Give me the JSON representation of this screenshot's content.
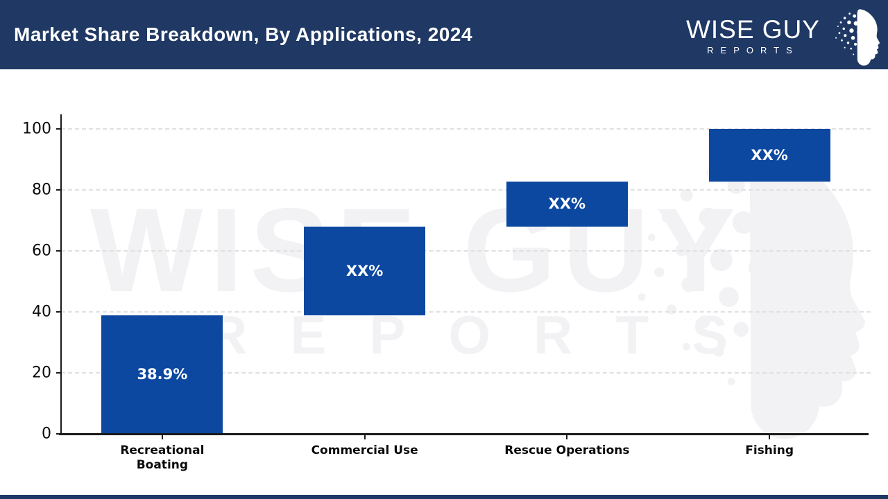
{
  "header": {
    "title": "Market Share Breakdown, By Applications, 2024",
    "logo": {
      "line1": "WISE GUY",
      "line2": "REPORTS"
    }
  },
  "watermark": {
    "line1": "WISE GUY",
    "line2": "REPORTS"
  },
  "chart_data": {
    "type": "bar",
    "variant": "waterfall",
    "title": "Market Share Breakdown, By Applications, 2024",
    "categories": [
      "Recreational Boating",
      "Commercial Use",
      "Rescue Operations",
      "Fishing"
    ],
    "bars": [
      {
        "category": "Recreational Boating",
        "tick_lines": [
          "Recreational",
          "Boating"
        ],
        "start": 0,
        "end": 38.9,
        "label": "38.9%"
      },
      {
        "category": "Commercial Use",
        "tick_lines": [
          "Commercial Use"
        ],
        "start": 38.9,
        "end": 68.0,
        "label": "XX%"
      },
      {
        "category": "Rescue Operations",
        "tick_lines": [
          "Rescue Operations"
        ],
        "start": 68.0,
        "end": 82.7,
        "label": "XX%"
      },
      {
        "category": "Fishing",
        "tick_lines": [
          "Fishing"
        ],
        "start": 82.7,
        "end": 100.0,
        "label": "XX%"
      }
    ],
    "xlabel": "",
    "ylabel": "",
    "ylim": [
      0,
      100
    ],
    "yticks": [
      0,
      20,
      40,
      60,
      80,
      100
    ],
    "grid": "horizontal-dashed",
    "legend": "none",
    "colors": {
      "header_bg": "#1f3864",
      "bar": "#0c48a0",
      "bar_label": "#ffffff",
      "grid": "#e0e0e0",
      "axis": "#1a1a1a",
      "tick_label": "#0a0a0a",
      "watermark": "#f2f2f4",
      "background": "#ffffff"
    }
  }
}
